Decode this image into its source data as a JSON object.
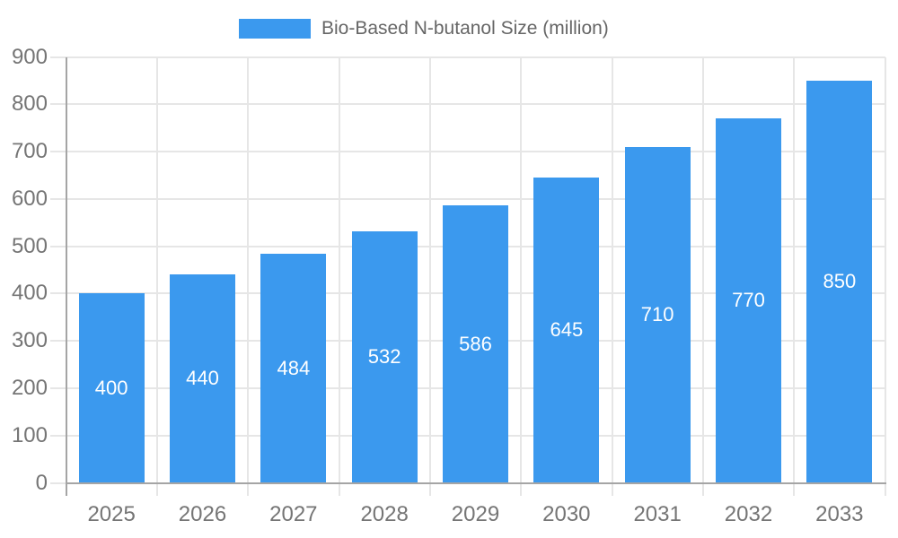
{
  "chart_data": {
    "type": "bar",
    "title": "",
    "legend_position": "top-center",
    "legend": [
      "Bio-Based N-butanol Size (million)"
    ],
    "categories": [
      "2025",
      "2026",
      "2027",
      "2028",
      "2029",
      "2030",
      "2031",
      "2032",
      "2033"
    ],
    "series": [
      {
        "name": "Bio-Based N-butanol Size (million)",
        "values": [
          400,
          440,
          484,
          532,
          586,
          645,
          710,
          770,
          850
        ]
      }
    ],
    "value_labels_shown": true,
    "xlabel": "",
    "ylabel": "",
    "ylim": [
      0,
      900
    ],
    "y_tick_step": 100,
    "y_ticks": [
      0,
      100,
      200,
      300,
      400,
      500,
      600,
      700,
      800,
      900
    ],
    "grid": true
  },
  "colors": {
    "bar": "#3B99EE",
    "grid": "#e6e6e6",
    "axis": "#a5a5a5",
    "tick_text": "#757575",
    "legend_text": "#666666",
    "value_text": "#ffffff",
    "background": "#ffffff"
  }
}
